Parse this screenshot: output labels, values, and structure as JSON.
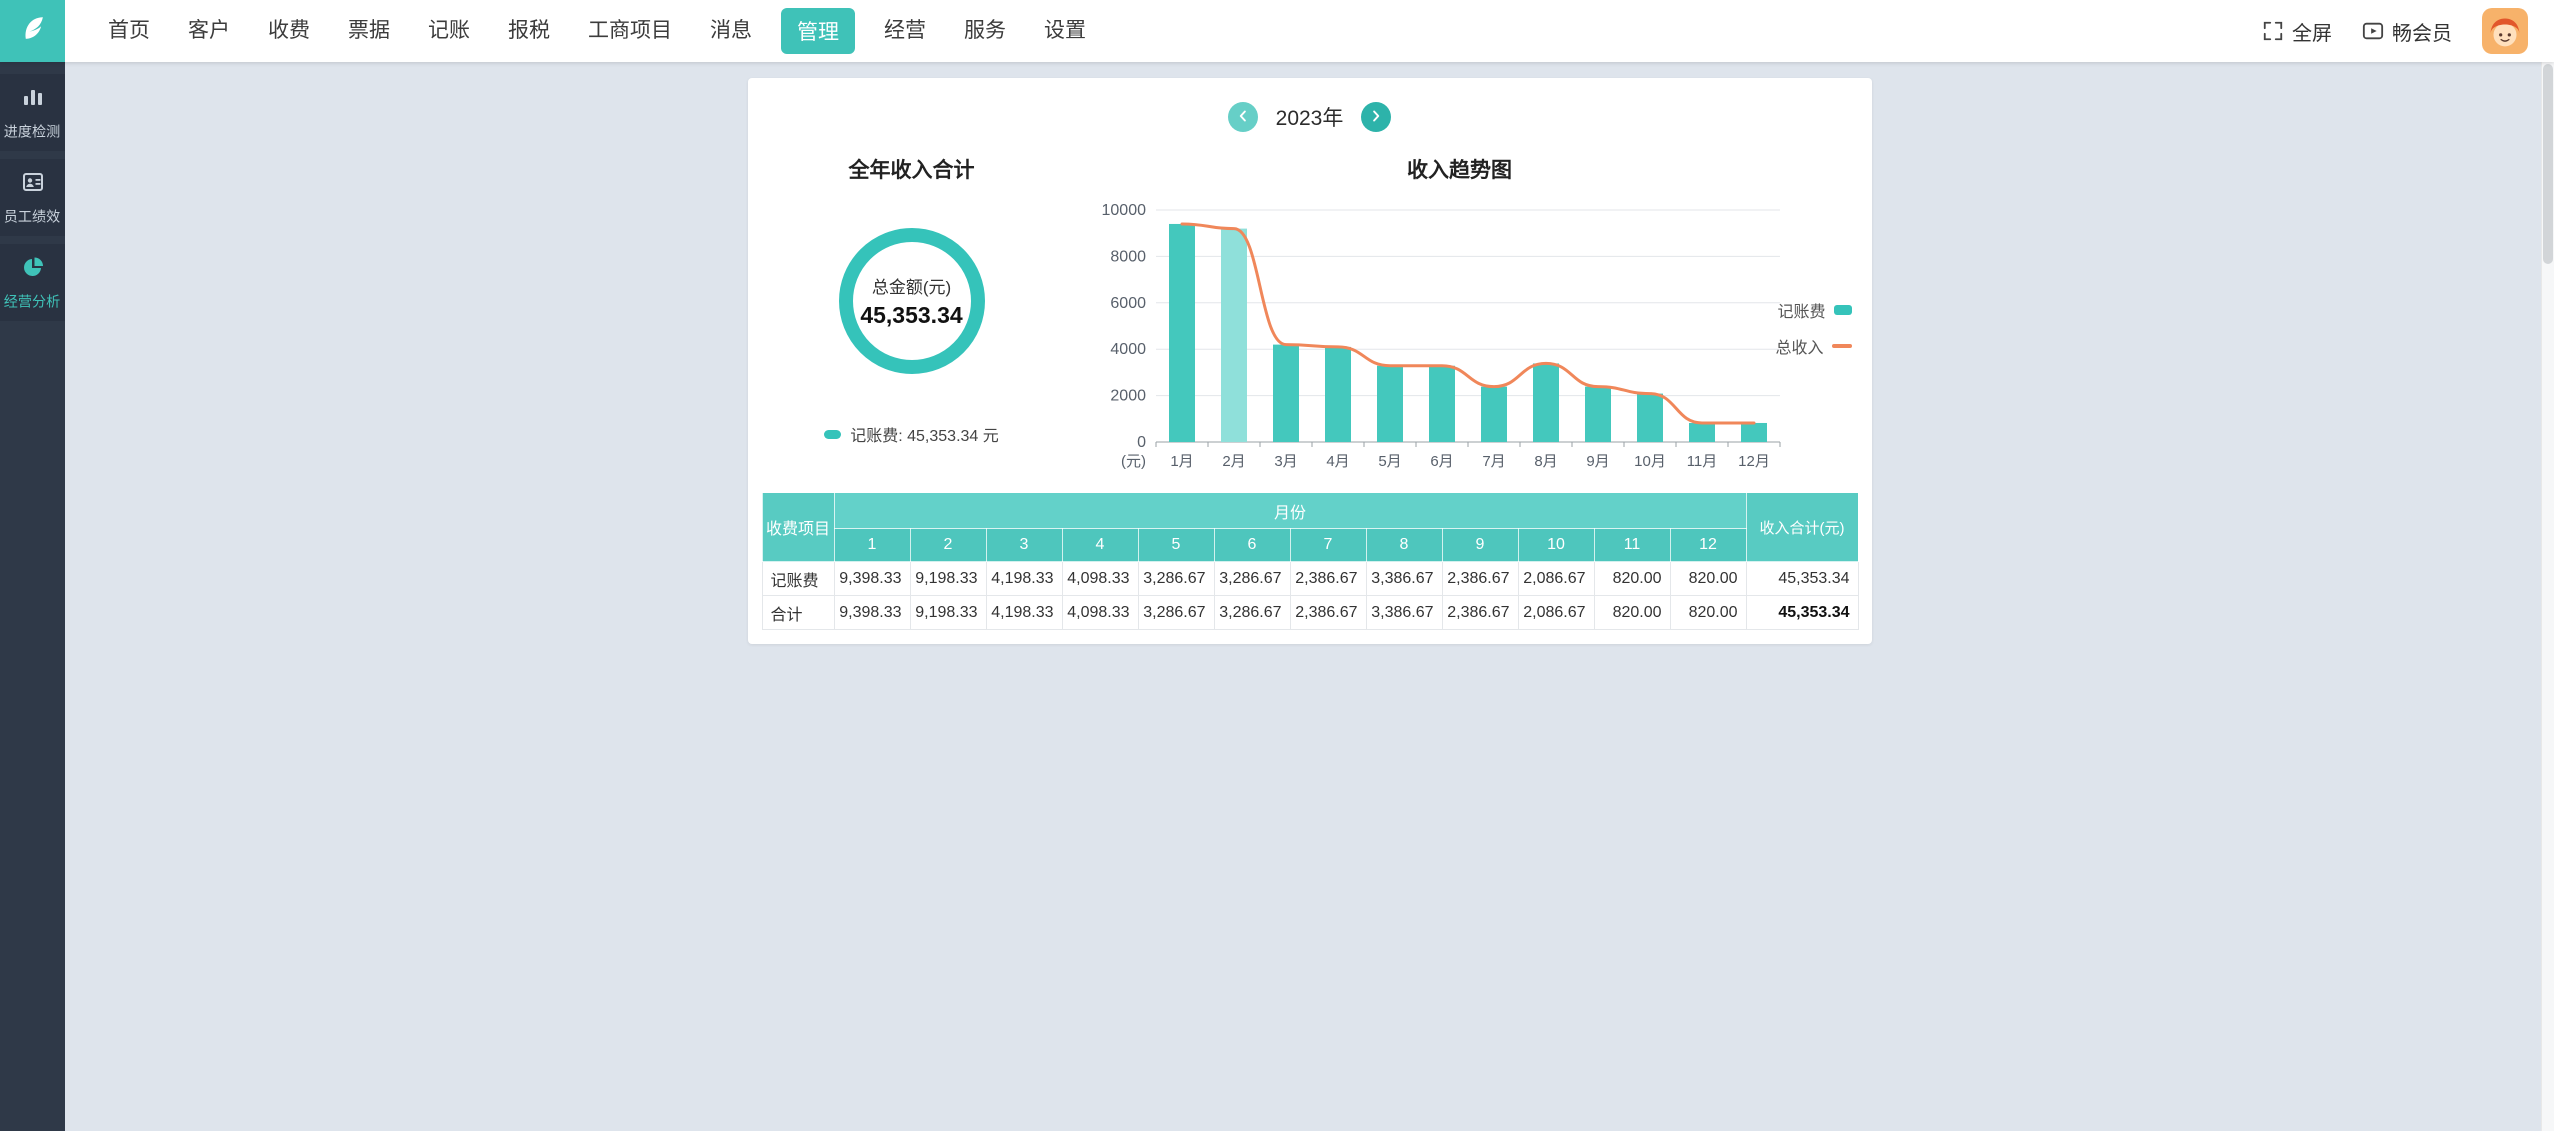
{
  "colors": {
    "accent": "#3fc2b8",
    "bar": "#44c8bd",
    "bar_light": "#8fe0da",
    "line": "#f0875a",
    "sidebar_bg": "#2f3948",
    "page_bg": "#dee4ec"
  },
  "navbar": {
    "items": [
      "首页",
      "客户",
      "收费",
      "票据",
      "记账",
      "报税",
      "工商项目",
      "消息",
      "管理",
      "经营",
      "服务",
      "设置"
    ],
    "active_item": "管理",
    "fullscreen_label": "全屏",
    "member_label": "畅会员"
  },
  "sidebar": {
    "items": [
      {
        "label": "进度检测",
        "icon": "bar-chart-icon",
        "active": false
      },
      {
        "label": "员工绩效",
        "icon": "badge-icon",
        "active": false
      },
      {
        "label": "经营分析",
        "icon": "pie-chart-icon",
        "active": true
      }
    ]
  },
  "content": {
    "year_label": "2023年",
    "summary": {
      "title": "全年收入合计",
      "donut_label": "总金额(元)",
      "donut_value": "45,353.34",
      "legend_text": "记账费: 45,353.34 元"
    },
    "trend_title": "收入趋势图"
  },
  "chart_data": {
    "type": "bar",
    "title": "收入趋势图",
    "categories": [
      "1月",
      "2月",
      "3月",
      "4月",
      "5月",
      "6月",
      "7月",
      "8月",
      "9月",
      "10月",
      "11月",
      "12月"
    ],
    "series": [
      {
        "name": "记账费",
        "type": "bar",
        "values": [
          9398.33,
          9198.33,
          4198.33,
          4098.33,
          3286.67,
          3286.67,
          2386.67,
          3386.67,
          2386.67,
          2086.67,
          820,
          820
        ]
      },
      {
        "name": "总收入",
        "type": "line",
        "values": [
          9398.33,
          9198.33,
          4198.33,
          4098.33,
          3286.67,
          3286.67,
          2386.67,
          3386.67,
          2386.67,
          2086.67,
          820,
          820
        ]
      }
    ],
    "ylim": [
      0,
      10000
    ],
    "ytick_interval": 2000,
    "y_unit_label": "(元)",
    "legend": [
      "记账费",
      "总收入"
    ],
    "legend_position": "right",
    "highlight_bar_index": 1,
    "grid": true
  },
  "table": {
    "corner_header": "收费项目",
    "group_header": "月份",
    "month_headers": [
      "1",
      "2",
      "3",
      "4",
      "5",
      "6",
      "7",
      "8",
      "9",
      "10",
      "11",
      "12"
    ],
    "total_header": "收入合计(元)",
    "rows": [
      {
        "label": "记账费",
        "values": [
          "9,398.33",
          "9,198.33",
          "4,198.33",
          "4,098.33",
          "3,286.67",
          "3,286.67",
          "2,386.67",
          "3,386.67",
          "2,386.67",
          "2,086.67",
          "820.00",
          "820.00"
        ],
        "total": "45,353.34",
        "bold_total": false
      },
      {
        "label": "合计",
        "values": [
          "9,398.33",
          "9,198.33",
          "4,198.33",
          "4,098.33",
          "3,286.67",
          "3,286.67",
          "2,386.67",
          "3,386.67",
          "2,386.67",
          "2,086.67",
          "820.00",
          "820.00"
        ],
        "total": "45,353.34",
        "bold_total": true
      }
    ]
  }
}
